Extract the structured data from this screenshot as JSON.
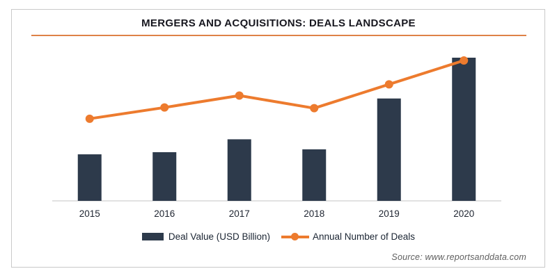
{
  "header": {
    "title": "MERGERS AND ACQUISITIONS: DEALS LANDSCAPE"
  },
  "legend": {
    "items": [
      {
        "label": "Deal Value (USD Billion)",
        "swatch": "bar-swatch",
        "color": "#2d3a4b"
      },
      {
        "label": "Annual Number of Deals",
        "swatch": "line-marker-swatch",
        "color": "#ed7b2e"
      }
    ]
  },
  "footer": {
    "source": "Source: www.reportsanddata.com"
  },
  "colors": {
    "bar": "#2d3a4b",
    "line": "#ed7b2e",
    "title_rule": "#de8147",
    "axis_line": "#d9d9d9",
    "frame_border": "#c9c9c9",
    "title_text": "#17171f",
    "axis_label_text": "#1e2430",
    "legend_text": "#1b2533",
    "source_text": "#5f5f5f"
  },
  "chart_data": {
    "type": "combo",
    "categories": [
      "2015",
      "2016",
      "2017",
      "2018",
      "2019",
      "2020"
    ],
    "series": [
      {
        "name": "Deal Value (USD Billion)",
        "type": "bar",
        "color": "#2d3a4b",
        "values": [
          32.5,
          34,
          43,
          36,
          71.5,
          100
        ]
      },
      {
        "name": "Annual Number of Deals",
        "type": "line",
        "color": "#ed7b2e",
        "values": [
          58.5,
          66.5,
          75,
          66,
          83,
          100
        ]
      }
    ],
    "title": "MERGERS AND ACQUISITIONS: DEALS LANDSCAPE",
    "xlabel": "",
    "ylabel": "",
    "ylim": [
      0,
      100
    ],
    "y_axis_visible": false,
    "grid": false,
    "legend_position": "bottom",
    "values_unit": "relative index (no y-axis scale shown; 2020 = 100)"
  }
}
